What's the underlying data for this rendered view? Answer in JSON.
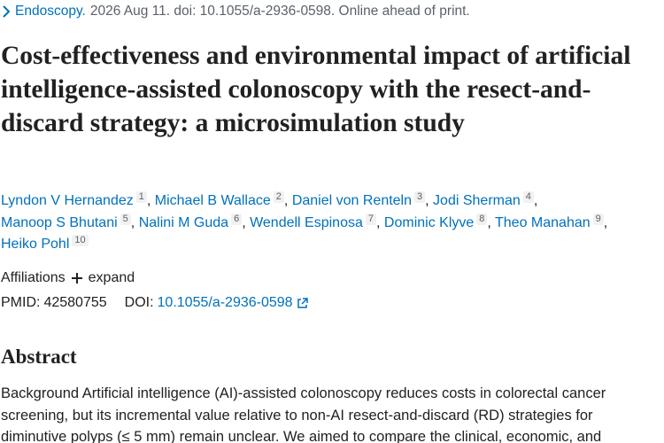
{
  "citation": {
    "journal": "Endoscopy.",
    "details": "2026 Aug 11. doi: 10.1055/a-2936-0598. Online ahead of print."
  },
  "title": "Cost-effectiveness and environmental impact of artificial intelligence-assisted colonoscopy with the resect-and-discard strategy: a microsimulation study",
  "authors": [
    {
      "name": "Lyndon V Hernandez",
      "affiliation": 1
    },
    {
      "name": "Michael B Wallace",
      "affiliation": 2
    },
    {
      "name": "Daniel von Renteln",
      "affiliation": 3
    },
    {
      "name": "Jodi Sherman",
      "affiliation": 4
    },
    {
      "name": "Manoop S Bhutani",
      "affiliation": 5
    },
    {
      "name": "Nalini M Guda",
      "affiliation": 6
    },
    {
      "name": "Wendell Espinosa",
      "affiliation": 7
    },
    {
      "name": "Dominic Klyve",
      "affiliation": 8
    },
    {
      "name": "Theo Manahan",
      "affiliation": 9
    },
    {
      "name": "Heiko Pohl",
      "affiliation": 10
    }
  ],
  "author_separator": ",",
  "affiliations": {
    "label": "Affiliations",
    "toggle": "expand"
  },
  "identifiers": {
    "pmid_label": "PMID:",
    "pmid": "42580755",
    "doi_label": "DOI:",
    "doi": "10.1055/a-2936-0598"
  },
  "abstract": {
    "heading": "Abstract",
    "text": "Background Artificial intelligence (AI)-assisted colonoscopy reduces costs in colorectal cancer screening, but its incremental value relative to non-AI resect-and-discard (RD) strategies for diminutive polyps (≤ 5 mm) remain unclear. We aimed to compare the clinical, economic, and"
  }
}
